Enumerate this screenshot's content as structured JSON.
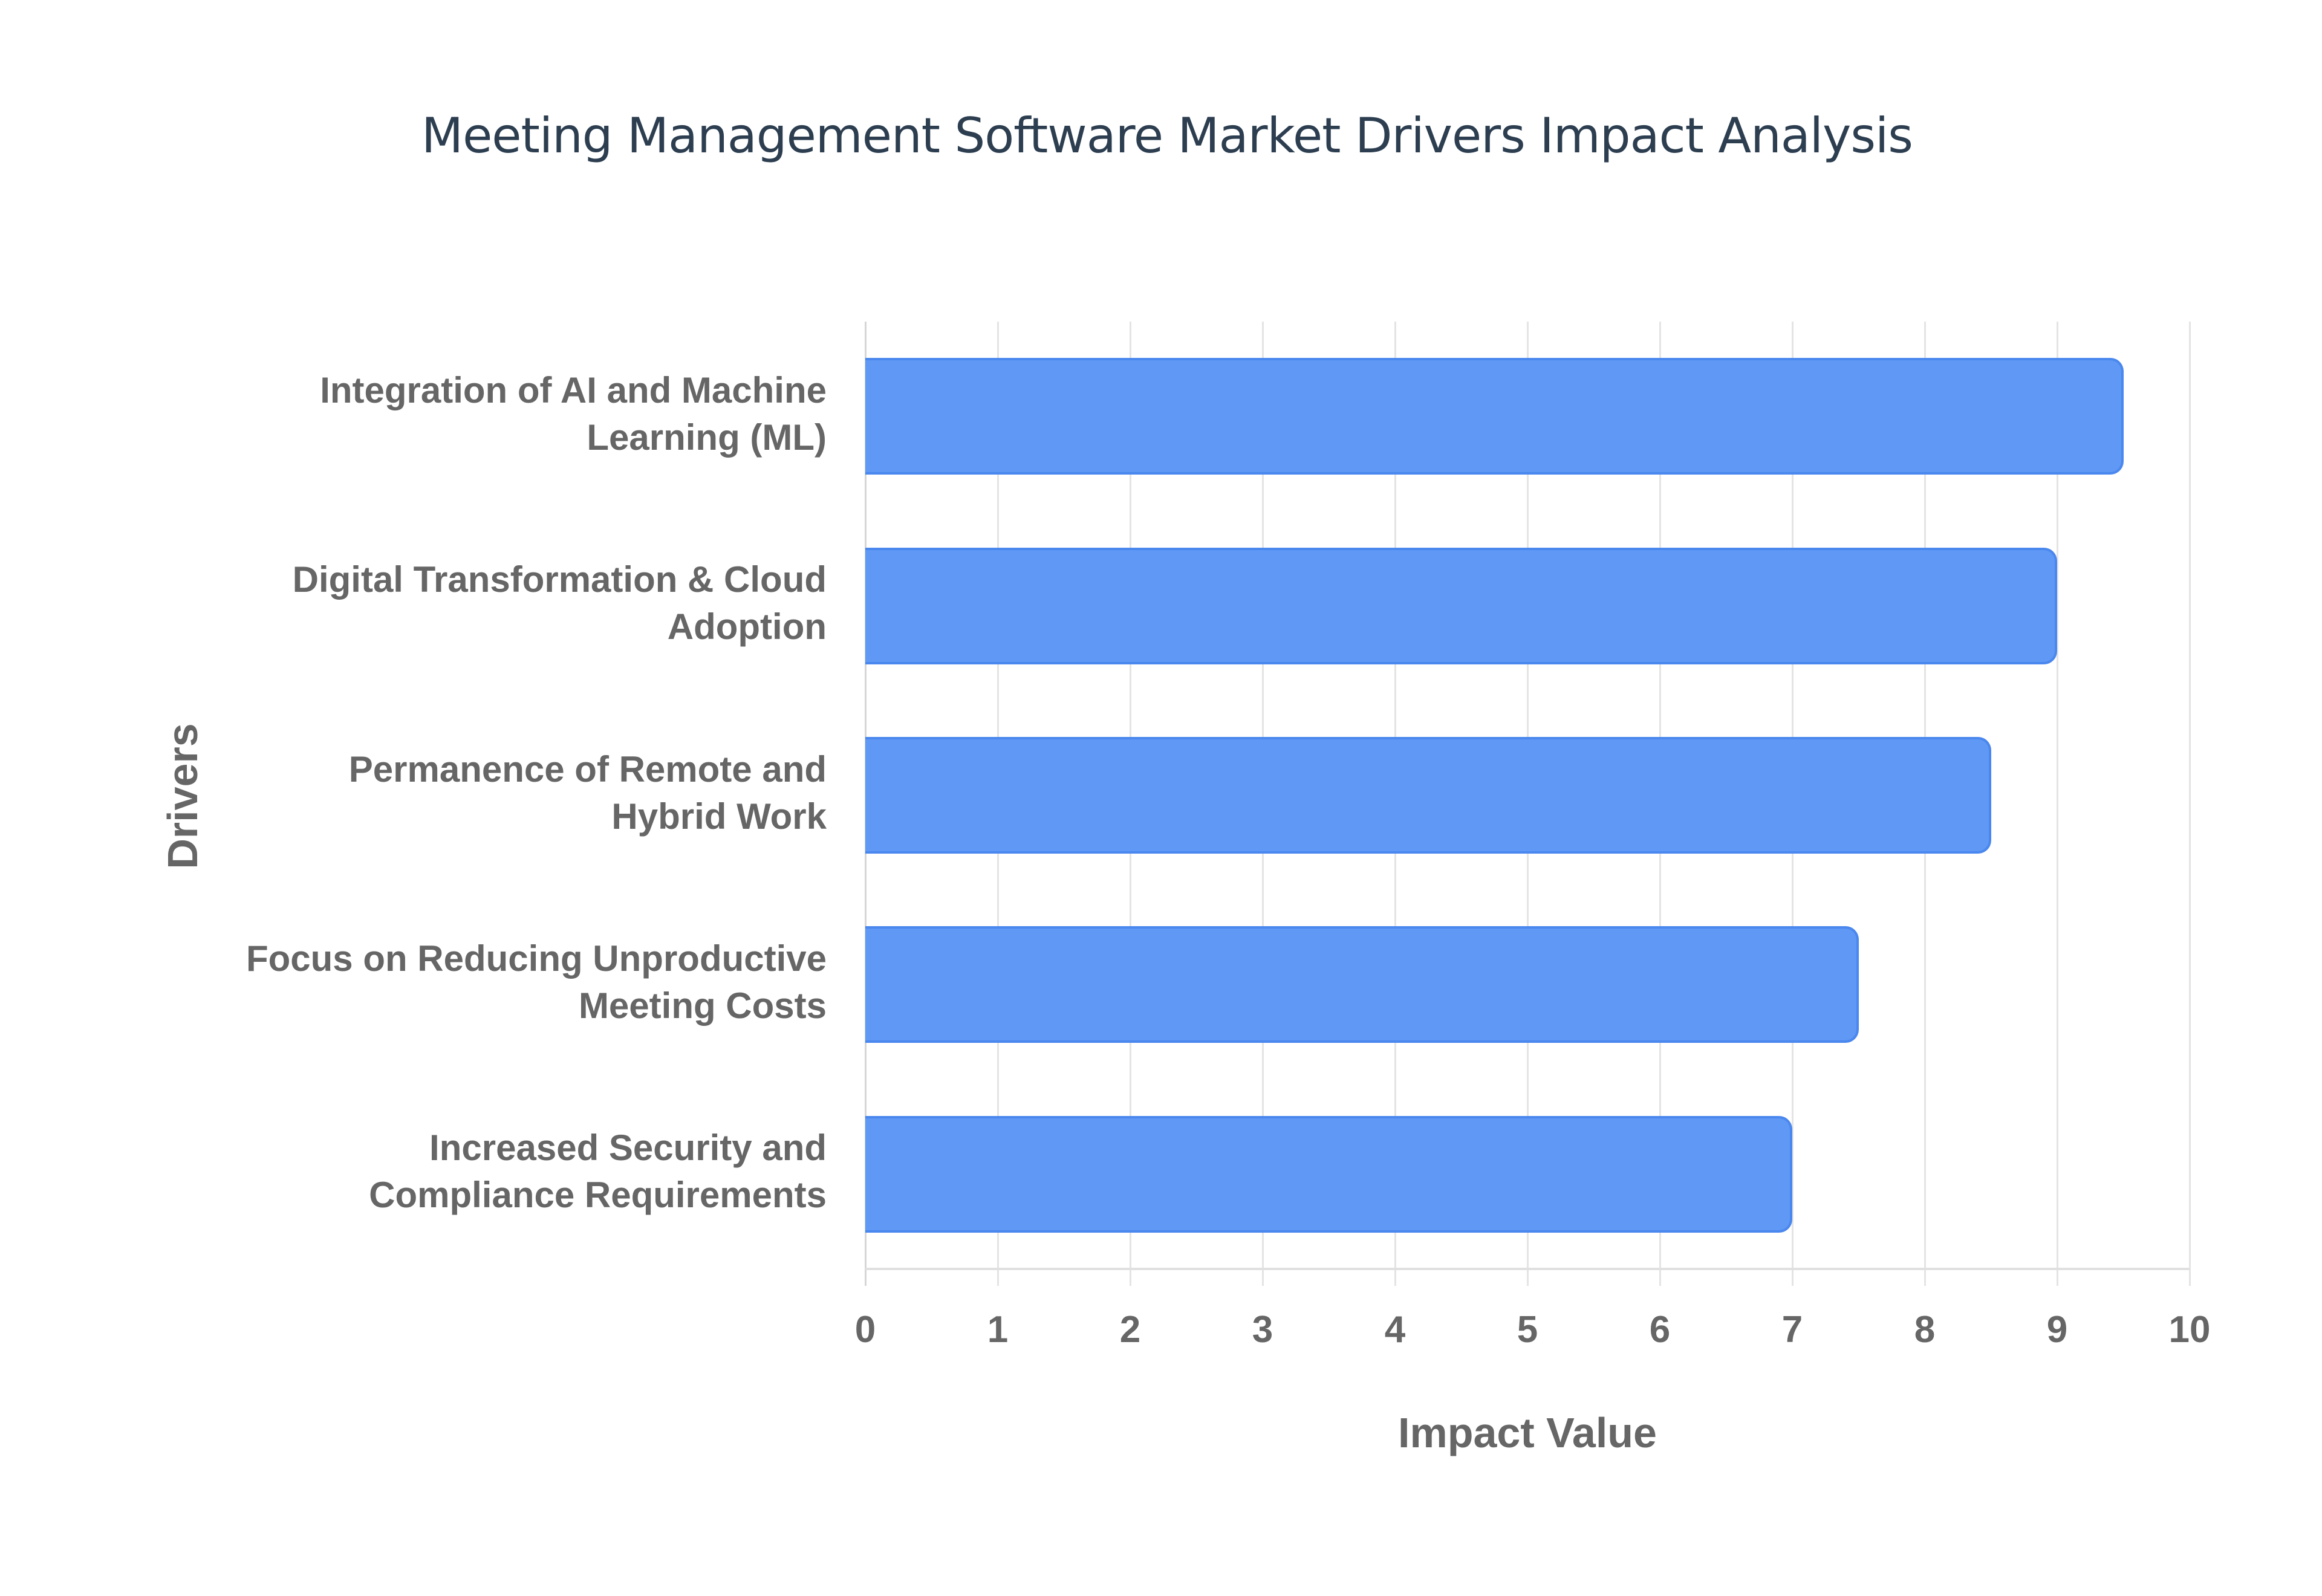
{
  "chart_data": {
    "type": "bar",
    "orientation": "horizontal",
    "title": "Meeting Management Software Market Drivers Impact Analysis",
    "xlabel": "Impact Value",
    "ylabel": "Drivers",
    "xlim": [
      0,
      10
    ],
    "x_ticks": [
      "0",
      "1",
      "2",
      "3",
      "4",
      "5",
      "6",
      "7",
      "8",
      "9",
      "10"
    ],
    "grid": true,
    "legend": "none",
    "categories": [
      "Integration of AI and Machine Learning (ML)",
      "Digital Transformation & Cloud Adoption",
      "Permanence of Remote and Hybrid Work",
      "Focus on Reducing Unproductive Meeting Costs",
      "Increased Security and Compliance Requirements"
    ],
    "category_label_lines": [
      [
        "Integration of AI and Machine",
        "Learning (ML)"
      ],
      [
        "Digital Transformation & Cloud",
        "Adoption"
      ],
      [
        "Permanence of Remote and",
        "Hybrid Work"
      ],
      [
        "Focus on Reducing Unproductive",
        "Meeting Costs"
      ],
      [
        "Increased Security and",
        "Compliance Requirements"
      ]
    ],
    "values": [
      9.5,
      9.0,
      8.5,
      7.5,
      7.0
    ],
    "colors": {
      "bar_fill": "#5f99f5",
      "bar_border": "#4a87ee",
      "title": "#2c3e50",
      "axis_text": "#666666",
      "grid": "#e4e4e4"
    }
  }
}
